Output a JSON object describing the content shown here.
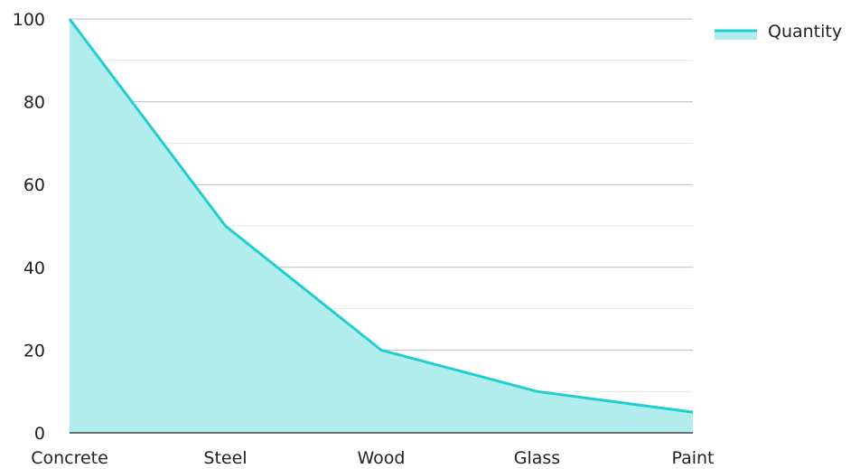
{
  "chart_data": {
    "type": "area",
    "categories": [
      "Concrete",
      "Steel",
      "Wood",
      "Glass",
      "Paint"
    ],
    "series": [
      {
        "name": "Quantity",
        "values": [
          100,
          50,
          20,
          10,
          5
        ],
        "line_color": "#1fcfcf",
        "fill_color": "#b2eded"
      }
    ],
    "ylim": [
      0,
      100
    ],
    "y_ticks": [
      0,
      20,
      40,
      60,
      80,
      100
    ],
    "y_minor_ticks": [
      10,
      30,
      50,
      70,
      90
    ],
    "grid": true,
    "legend_position": "top-right",
    "title": "",
    "xlabel": "",
    "ylabel": ""
  }
}
